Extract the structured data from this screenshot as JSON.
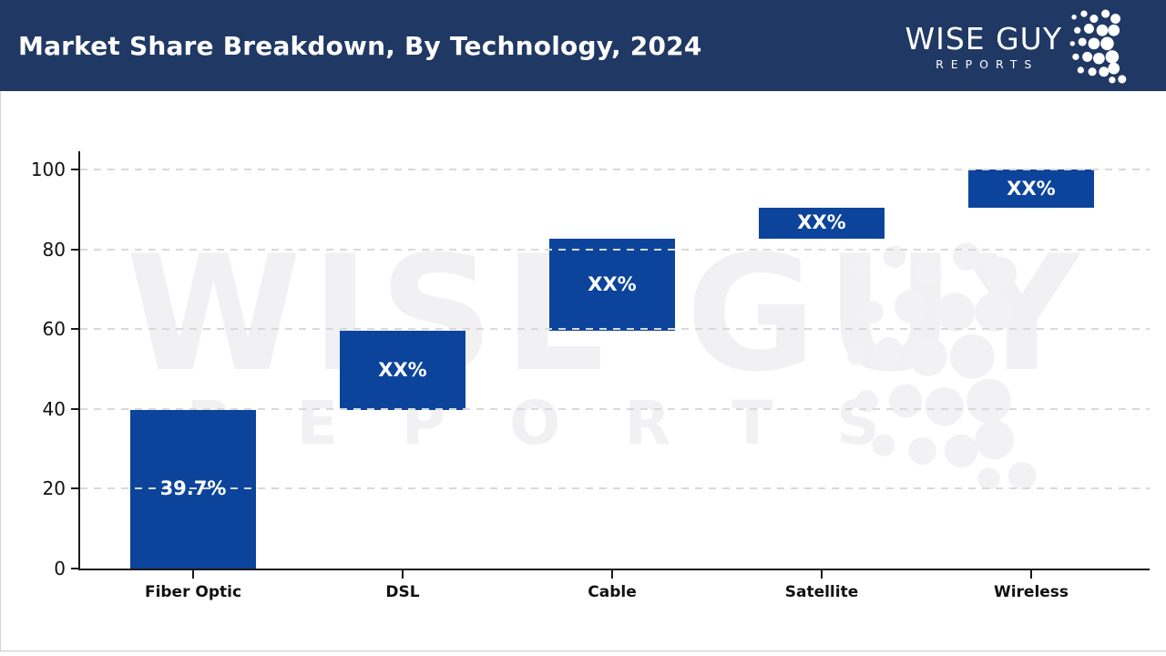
{
  "header": {
    "title": "Market Share Breakdown, By Technology, 2024",
    "bg_color": "#203864",
    "brand": {
      "line1": "WISE GUY",
      "line2": "REPORTS"
    }
  },
  "watermark": {
    "line1": "WISE GUY",
    "line2": "REPORTS"
  },
  "chart_data": {
    "type": "bar",
    "variant": "waterfall",
    "title": "Market Share Breakdown, By Technology, 2024",
    "categories": [
      "Fiber Optic",
      "DSL",
      "Cable",
      "Satellite",
      "Wireless"
    ],
    "segments": [
      {
        "category": "Fiber Optic",
        "start": 0,
        "end": 39.7,
        "label": "39.7%"
      },
      {
        "category": "DSL",
        "start": 39.7,
        "end": 59.5,
        "label": "XX%"
      },
      {
        "category": "Cable",
        "start": 59.5,
        "end": 82.7,
        "label": "XX%"
      },
      {
        "category": "Satellite",
        "start": 82.7,
        "end": 90.4,
        "label": "XX%"
      },
      {
        "category": "Wireless",
        "start": 90.4,
        "end": 100,
        "label": "XX%"
      }
    ],
    "yticks": [
      0,
      20,
      40,
      60,
      80,
      100
    ],
    "ylim": [
      0,
      104.5
    ],
    "xlabel": "",
    "ylabel": "",
    "grid": true,
    "grid_style": "dashed",
    "legend": "none",
    "bar_color": "#0c449b",
    "bar_label_color": "#ffffff",
    "grid_color": "#d9d9d9",
    "axis_color": "#1a1a1a"
  }
}
